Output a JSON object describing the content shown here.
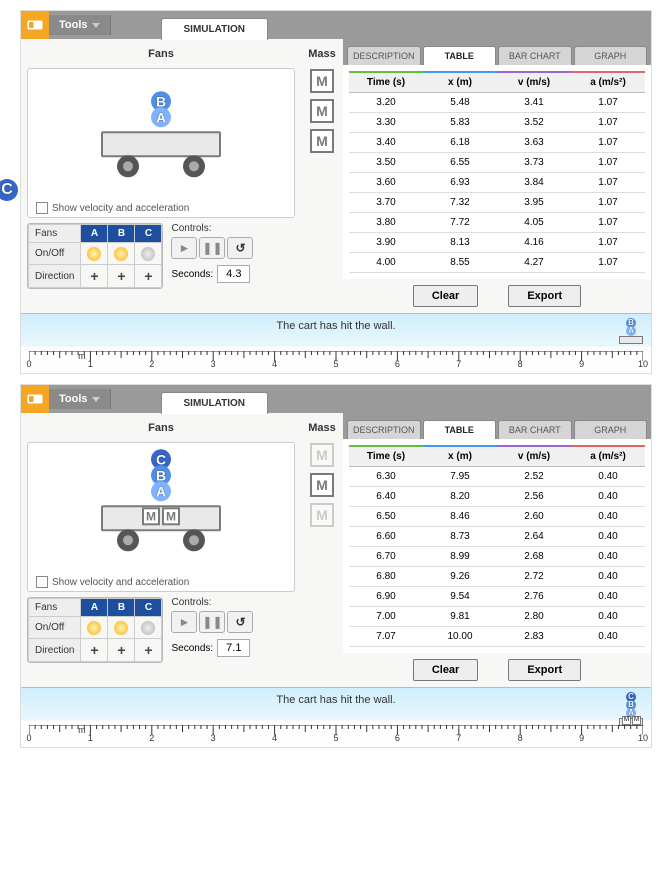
{
  "units": [
    {
      "tools_label": "Tools",
      "sim_tab": "SIMULATION",
      "fans_label": "Fans",
      "mass_label": "Mass",
      "checkbox_label": "Show velocity and acceleration",
      "side_fan_letter": "C",
      "cart_stack": [
        "B",
        "A"
      ],
      "cart_masses": [],
      "mass_slots": [
        true,
        true,
        true
      ],
      "fan_headers": [
        "A",
        "B",
        "C"
      ],
      "fan_rows_label": "Fans",
      "onoff_label": "On/Off",
      "direction_label": "Direction",
      "onoff": [
        "on",
        "on",
        "off"
      ],
      "direction": [
        "+",
        "+",
        "+"
      ],
      "controls_label": "Controls:",
      "seconds_label": "Seconds:",
      "seconds_value": "4.3",
      "right_tabs": [
        "DESCRIPTION",
        "TABLE",
        "BAR CHART",
        "GRAPH"
      ],
      "active_tab_index": 1,
      "table_columns": [
        "Time (s)",
        "x (m)",
        "v (m/s)",
        "a (m/s²)"
      ],
      "table_rows": [
        [
          "3.20",
          "5.48",
          "3.41",
          "1.07"
        ],
        [
          "3.30",
          "5.83",
          "3.52",
          "1.07"
        ],
        [
          "3.40",
          "6.18",
          "3.63",
          "1.07"
        ],
        [
          "3.50",
          "6.55",
          "3.73",
          "1.07"
        ],
        [
          "3.60",
          "6.93",
          "3.84",
          "1.07"
        ],
        [
          "3.70",
          "7.32",
          "3.95",
          "1.07"
        ],
        [
          "3.80",
          "7.72",
          "4.05",
          "1.07"
        ],
        [
          "3.90",
          "8.13",
          "4.16",
          "1.07"
        ],
        [
          "4.00",
          "8.55",
          "4.27",
          "1.07"
        ]
      ],
      "clear_label": "Clear",
      "export_label": "Export",
      "status_text": "The cart has hit the wall.",
      "ruler_min": 0,
      "ruler_max": 10,
      "mini_cart_pos": 10,
      "mini_stack": [
        "B",
        "A"
      ],
      "mini_masses": []
    },
    {
      "tools_label": "Tools",
      "sim_tab": "SIMULATION",
      "fans_label": "Fans",
      "mass_label": "Mass",
      "checkbox_label": "Show velocity and acceleration",
      "side_fan_letter": "",
      "cart_stack": [
        "C",
        "B",
        "A"
      ],
      "cart_masses": [
        "M",
        "M"
      ],
      "mass_slots": [
        false,
        true,
        false
      ],
      "fan_headers": [
        "A",
        "B",
        "C"
      ],
      "fan_rows_label": "Fans",
      "onoff_label": "On/Off",
      "direction_label": "Direction",
      "onoff": [
        "on",
        "on",
        "off"
      ],
      "direction": [
        "+",
        "+",
        "+"
      ],
      "controls_label": "Controls:",
      "seconds_label": "Seconds:",
      "seconds_value": "7.1",
      "right_tabs": [
        "DESCRIPTION",
        "TABLE",
        "BAR CHART",
        "GRAPH"
      ],
      "active_tab_index": 1,
      "table_columns": [
        "Time (s)",
        "x (m)",
        "v (m/s)",
        "a (m/s²)"
      ],
      "table_rows": [
        [
          "6.30",
          "7.95",
          "2.52",
          "0.40"
        ],
        [
          "6.40",
          "8.20",
          "2.56",
          "0.40"
        ],
        [
          "6.50",
          "8.46",
          "2.60",
          "0.40"
        ],
        [
          "6.60",
          "8.73",
          "2.64",
          "0.40"
        ],
        [
          "6.70",
          "8.99",
          "2.68",
          "0.40"
        ],
        [
          "6.80",
          "9.26",
          "2.72",
          "0.40"
        ],
        [
          "6.90",
          "9.54",
          "2.76",
          "0.40"
        ],
        [
          "7.00",
          "9.81",
          "2.80",
          "0.40"
        ],
        [
          "7.07",
          "10.00",
          "2.83",
          "0.40"
        ]
      ],
      "clear_label": "Clear",
      "export_label": "Export",
      "status_text": "The cart has hit the wall.",
      "ruler_min": 0,
      "ruler_max": 10,
      "mini_cart_pos": 10,
      "mini_stack": [
        "C",
        "B",
        "A"
      ],
      "mini_masses": [
        "M",
        "M"
      ]
    }
  ],
  "colors": {
    "topbar": "#9a9a9a",
    "logo": "#f5a623",
    "fan_header_bg": "#1d4f9e",
    "sky": "#cfeefc"
  }
}
